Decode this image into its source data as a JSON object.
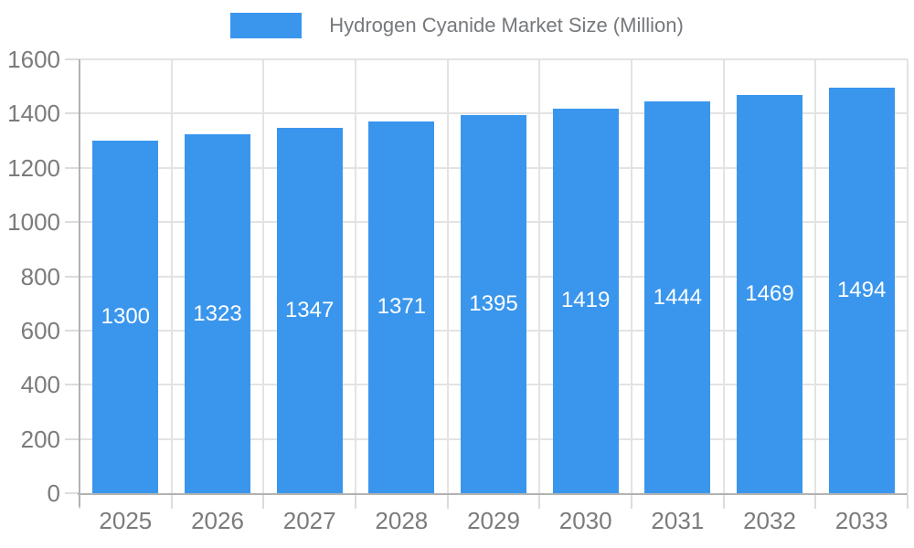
{
  "chart_data": {
    "type": "bar",
    "title": "Hydrogen Cyanide Market Size (Million)",
    "legend": [
      "Hydrogen Cyanide Market Size (Million)"
    ],
    "legend_position": "top",
    "categories": [
      "2025",
      "2026",
      "2027",
      "2028",
      "2029",
      "2030",
      "2031",
      "2032",
      "2033"
    ],
    "values": [
      1300,
      1323,
      1347,
      1371,
      1395,
      1419,
      1444,
      1469,
      1494
    ],
    "xlabel": "",
    "ylabel": "",
    "ylim": [
      0,
      1600
    ],
    "ytick_step": 200,
    "yticks": [
      0,
      200,
      400,
      600,
      800,
      1000,
      1200,
      1400,
      1600
    ],
    "grid": true,
    "bar_labels_inside": true
  },
  "colors": {
    "bar": "#3A96ED",
    "bar_label": "#FFFFFF",
    "axis_text": "#7B7B7B",
    "legend_text": "#75787C",
    "gridline": "#E3E3E3",
    "tick": "#DCDCDC",
    "axis_line": "#B2B2B2",
    "background": "#FFFFFF"
  }
}
